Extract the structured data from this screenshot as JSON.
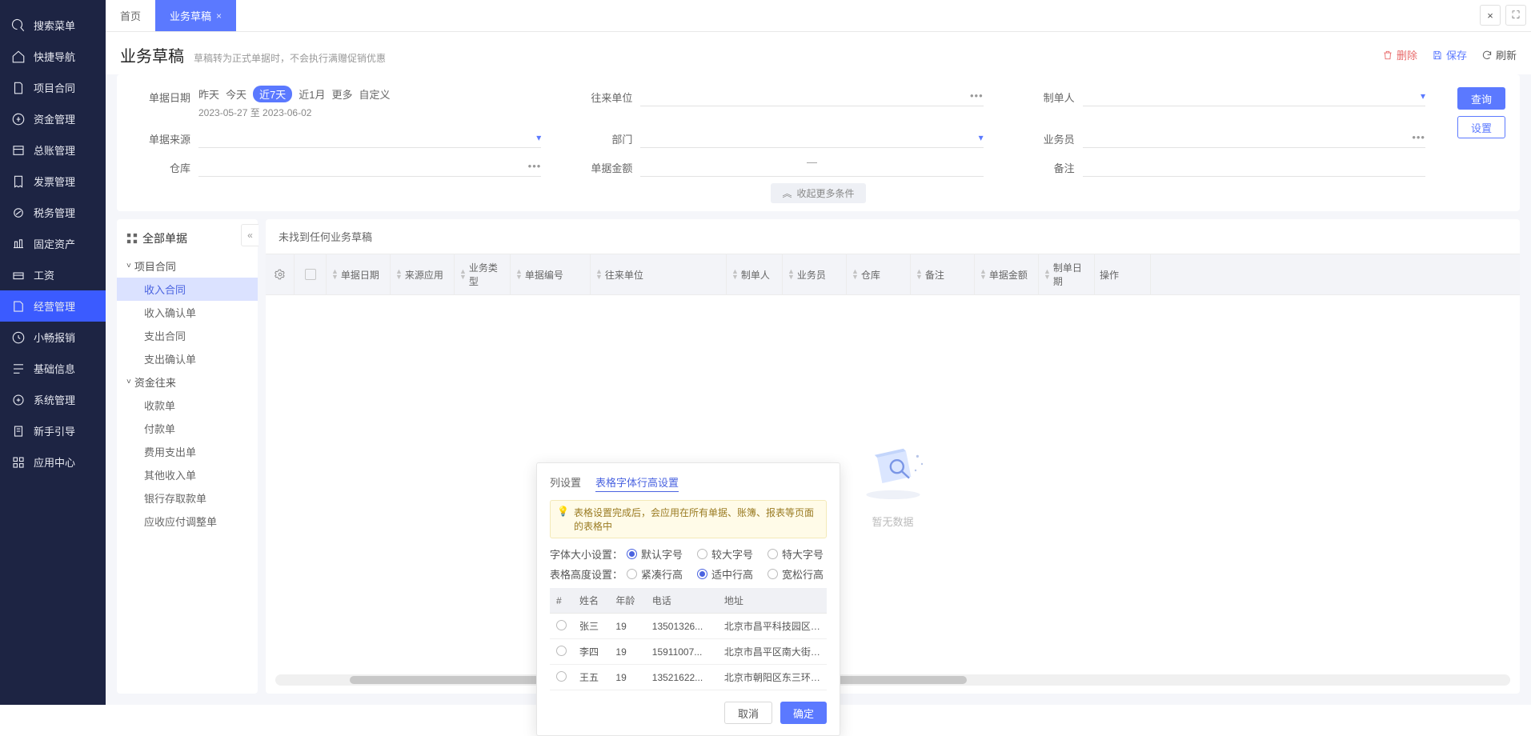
{
  "sidebar": {
    "items": [
      {
        "label": "搜索菜单",
        "icon": "search"
      },
      {
        "label": "快捷导航",
        "icon": "home"
      },
      {
        "label": "项目合同",
        "icon": "doc"
      },
      {
        "label": "资金管理",
        "icon": "money"
      },
      {
        "label": "总账管理",
        "icon": "ledger"
      },
      {
        "label": "发票管理",
        "icon": "invoice"
      },
      {
        "label": "税务管理",
        "icon": "tax"
      },
      {
        "label": "固定资产",
        "icon": "asset"
      },
      {
        "label": "工资",
        "icon": "salary"
      },
      {
        "label": "经营管理",
        "icon": "biz",
        "active": true
      },
      {
        "label": "小畅报销",
        "icon": "expense"
      },
      {
        "label": "基础信息",
        "icon": "info"
      },
      {
        "label": "系统管理",
        "icon": "system"
      },
      {
        "label": "新手引导",
        "icon": "guide"
      },
      {
        "label": "应用中心",
        "icon": "apps"
      }
    ]
  },
  "tabs": {
    "home": "首页",
    "draft": "业务草稿"
  },
  "topIcons": {
    "close": "×",
    "full": "⛶"
  },
  "header": {
    "title": "业务草稿",
    "subtitle": "草稿转为正式单据时，不会执行满赠促销优惠",
    "delete": "删除",
    "save": "保存",
    "refresh": "刷新"
  },
  "filters": {
    "dateLabel": "单据日期",
    "quick": [
      "昨天",
      "今天",
      "近7天",
      "近1月",
      "更多",
      "自定义"
    ],
    "quickActiveIndex": 2,
    "dateRange": "2023-05-27 至 2023-06-02",
    "partnerLabel": "往来单位",
    "makerLabel": "制单人",
    "sourceLabel": "单据来源",
    "deptLabel": "部门",
    "salesmanLabel": "业务员",
    "warehouseLabel": "仓库",
    "amountLabel": "单据金额",
    "remarkLabel": "备注",
    "queryBtn": "查询",
    "settingBtn": "设置",
    "collapse": "收起更多条件"
  },
  "tree": {
    "all": "全部单据",
    "groups": [
      {
        "label": "项目合同",
        "leaves": [
          {
            "label": "收入合同",
            "active": true
          },
          {
            "label": "收入确认单"
          },
          {
            "label": "支出合同"
          },
          {
            "label": "支出确认单"
          }
        ]
      },
      {
        "label": "资金往来",
        "leaves": [
          {
            "label": "收款单"
          },
          {
            "label": "付款单"
          },
          {
            "label": "费用支出单"
          },
          {
            "label": "其他收入单"
          },
          {
            "label": "银行存取款单"
          },
          {
            "label": "应收应付调整单"
          }
        ]
      }
    ]
  },
  "table": {
    "emptyMsg": "未找到任何业务草稿",
    "noData": "暂无数据",
    "columns": [
      "单据日期",
      "来源应用",
      "业务类型",
      "单据编号",
      "往来单位",
      "制单人",
      "业务员",
      "仓库",
      "备注",
      "单据金额",
      "制单日期",
      "操作"
    ],
    "widths": [
      80,
      80,
      70,
      100,
      170,
      70,
      80,
      80,
      80,
      80,
      70,
      70
    ]
  },
  "dialog": {
    "tabCols": "列设置",
    "tabFont": "表格字体行高设置",
    "banner": "表格设置完成后，会应用在所有单据、账簿、报表等页面的表格中",
    "fontLabel": "字体大小设置：",
    "fontOpts": [
      "默认字号",
      "较大字号",
      "特大字号"
    ],
    "fontSel": 0,
    "heightLabel": "表格高度设置：",
    "heightOpts": [
      "紧凑行高",
      "适中行高",
      "宽松行高"
    ],
    "heightSel": 1,
    "th": [
      "#",
      "姓名",
      "年龄",
      "电话",
      "地址"
    ],
    "rows": [
      {
        "name": "张三",
        "age": "19",
        "phone": "13501326...",
        "addr": "北京市昌平科技园区综..."
      },
      {
        "name": "李四",
        "age": "19",
        "phone": "15911007...",
        "addr": "北京市昌平区南大街9号"
      },
      {
        "name": "王五",
        "age": "19",
        "phone": "13521622...",
        "addr": "北京市朝阳区东三环北..."
      }
    ],
    "cancel": "取消",
    "ok": "确定"
  }
}
